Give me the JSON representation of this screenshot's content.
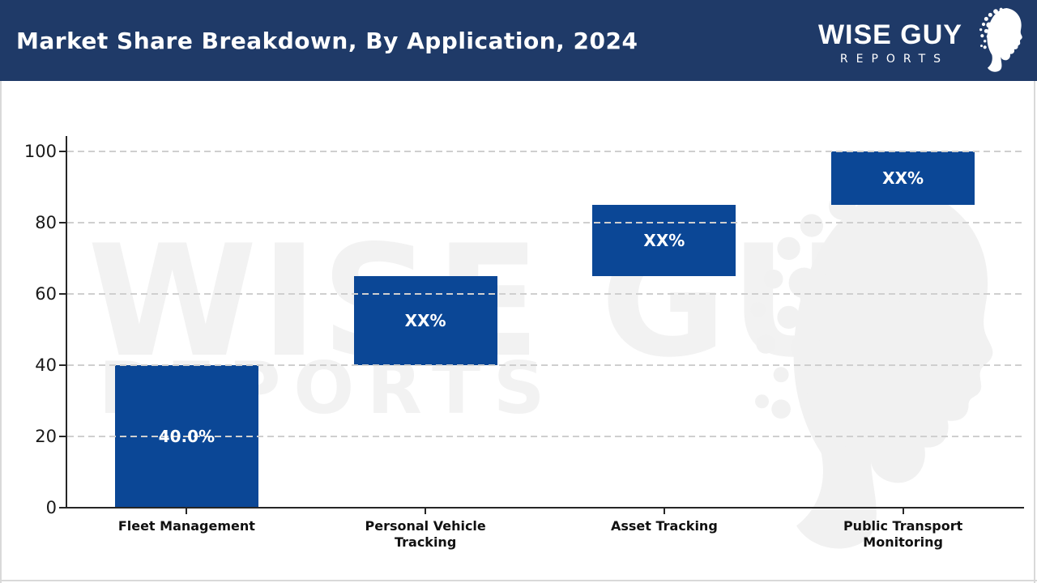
{
  "header": {
    "title": "Market Share Breakdown, By Application, 2024",
    "logo": {
      "name": "WISE GUY",
      "tagline": "REPORTS"
    }
  },
  "watermark": {
    "line1": "WISE GUY",
    "line2": "REPORTS"
  },
  "chart_data": {
    "type": "bar",
    "subtype": "waterfall",
    "title": "Market Share Breakdown, By Application, 2024",
    "categories": [
      "Fleet Management",
      "Personal Vehicle Tracking",
      "Asset Tracking",
      "Public Transport Monitoring"
    ],
    "bars": [
      {
        "category": "Fleet Management",
        "lines": [
          "Fleet Management"
        ],
        "start": 0,
        "end": 40,
        "value": 40,
        "label": "40.0%"
      },
      {
        "category": "Personal Vehicle Tracking",
        "lines": [
          "Personal Vehicle",
          "Tracking"
        ],
        "start": 40,
        "end": 65,
        "value": 25,
        "label": "XX%"
      },
      {
        "category": "Asset Tracking",
        "lines": [
          "Asset Tracking"
        ],
        "start": 65,
        "end": 85,
        "value": 20,
        "label": "XX%"
      },
      {
        "category": "Public Transport Monitoring",
        "lines": [
          "Public Transport",
          "Monitoring"
        ],
        "start": 85,
        "end": 100,
        "value": 15,
        "label": "XX%"
      }
    ],
    "xlabel": "",
    "ylabel": "",
    "ylim": [
      0,
      100
    ],
    "yticks": [
      0,
      20,
      40,
      60,
      80,
      100
    ],
    "grid": {
      "horizontal": true,
      "style": "dashed",
      "drawn_above_bars": true
    },
    "legend": null,
    "bar_color": "#0b4796",
    "bar_label_color": "#ffffff",
    "grid_color": "#cfcfcf",
    "axis_color": "#262626"
  },
  "colors": {
    "header_bg": "#1f3a68",
    "page_bg": "#ffffff",
    "watermark": "#f2f2f2",
    "edge": "#d9d9d9"
  }
}
